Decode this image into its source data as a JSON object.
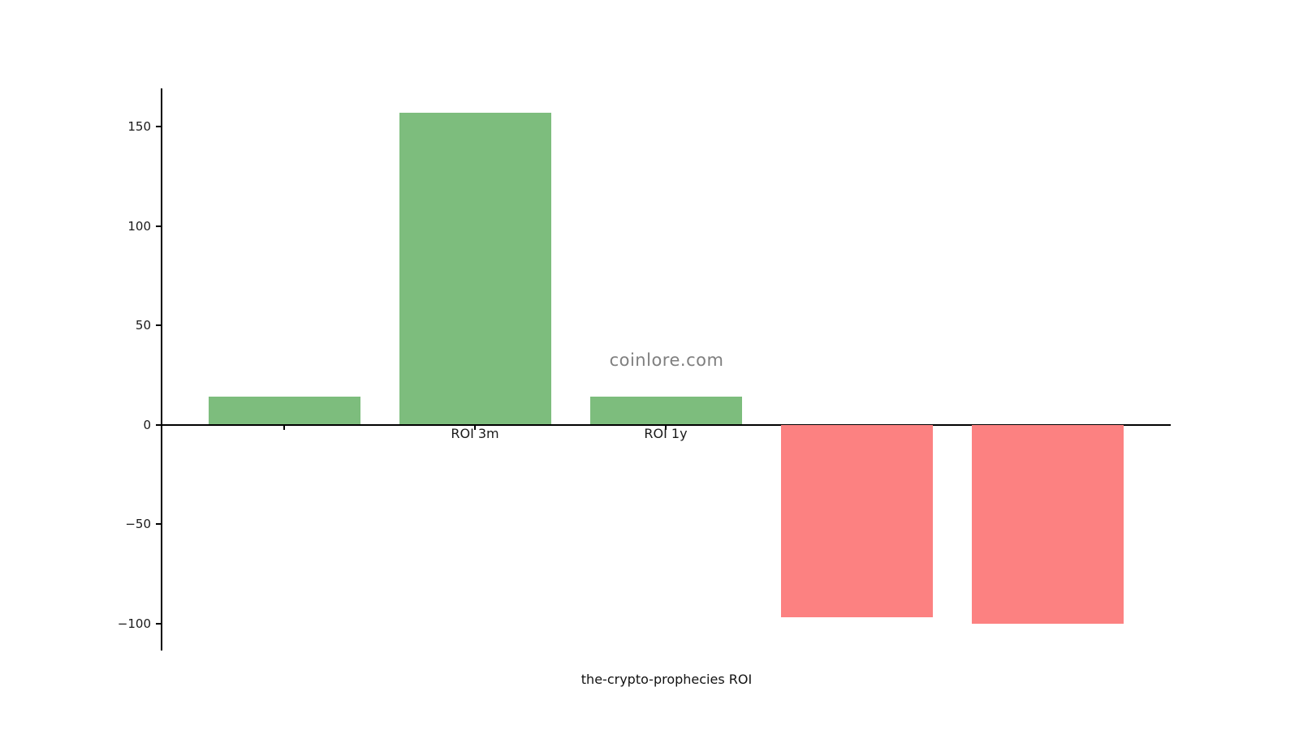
{
  "page": {
    "background": "#ffffff"
  },
  "watermark": {
    "text": "coinlore.com",
    "color": "#7f7f7f"
  },
  "chart_data": {
    "type": "bar",
    "title": "",
    "xlabel": "the-crypto-prophecies ROI",
    "ylabel": "",
    "categories": [
      "",
      "ROI 3m",
      "ROI 1y",
      "",
      ""
    ],
    "values": [
      14,
      157,
      14,
      -97,
      -100
    ],
    "positive_color": "#7dbd7d",
    "negative_color": "#fc8181",
    "bar_colors": [
      "#7dbd7d",
      "#7dbd7d",
      "#7dbd7d",
      "#fc8181",
      "#fc8181"
    ],
    "y_ticks": [
      150,
      100,
      50,
      0,
      -50,
      -100
    ],
    "y_tick_labels": [
      "150",
      "100",
      "50",
      "0",
      "−50",
      "−100"
    ],
    "ylim": [
      -113,
      170
    ],
    "grid": false,
    "legend": null,
    "axis_color": "#000000"
  }
}
